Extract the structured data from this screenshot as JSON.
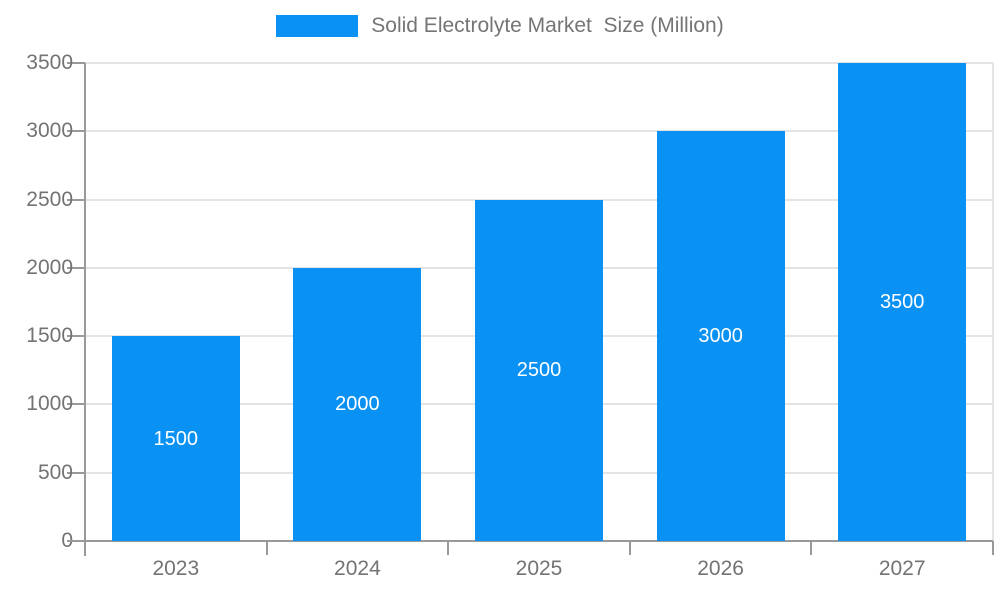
{
  "chart_data": {
    "type": "bar",
    "title": "Solid Electrolyte Market  Size (Million)",
    "legend": "Solid Electrolyte Market  Size (Million)",
    "legend_position": "top",
    "categories": [
      "2023",
      "2024",
      "2025",
      "2026",
      "2027"
    ],
    "series": [
      {
        "name": "Solid Electrolyte Market  Size (Million)",
        "values": [
          1500,
          2000,
          2500,
          3000,
          3500
        ]
      }
    ],
    "value_labels_shown": true,
    "value_labels": [
      "1500",
      "2000",
      "2500",
      "3000",
      "3500"
    ],
    "xlabel": "",
    "ylabel": "",
    "ylim": [
      0,
      3500
    ],
    "yticks": [
      0,
      500,
      1000,
      1500,
      2000,
      2500,
      3000,
      3500
    ],
    "grid": true
  },
  "colors": {
    "bar": "#0991F4",
    "grid": "#e4e4e4",
    "axis": "#999999",
    "tick_text": "#737373",
    "value_text": "#ffffff",
    "legend_text": "#757575",
    "background": "#ffffff"
  }
}
